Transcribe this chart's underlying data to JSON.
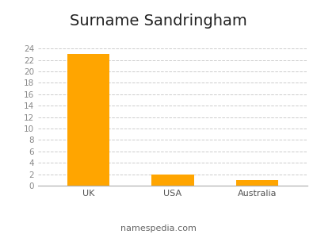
{
  "title": "Surname Sandringham",
  "categories": [
    "UK",
    "USA",
    "Australia"
  ],
  "values": [
    23,
    2,
    1
  ],
  "bar_color": "#FFA500",
  "ylim": [
    0,
    25
  ],
  "yticks": [
    0,
    2,
    4,
    6,
    8,
    10,
    12,
    14,
    16,
    18,
    20,
    22,
    24
  ],
  "grid_color": "#cccccc",
  "background_color": "#ffffff",
  "footer_text": "namespedia.com",
  "title_fontsize": 14,
  "tick_fontsize": 7.5,
  "footer_fontsize": 8,
  "xtick_fontsize": 8
}
